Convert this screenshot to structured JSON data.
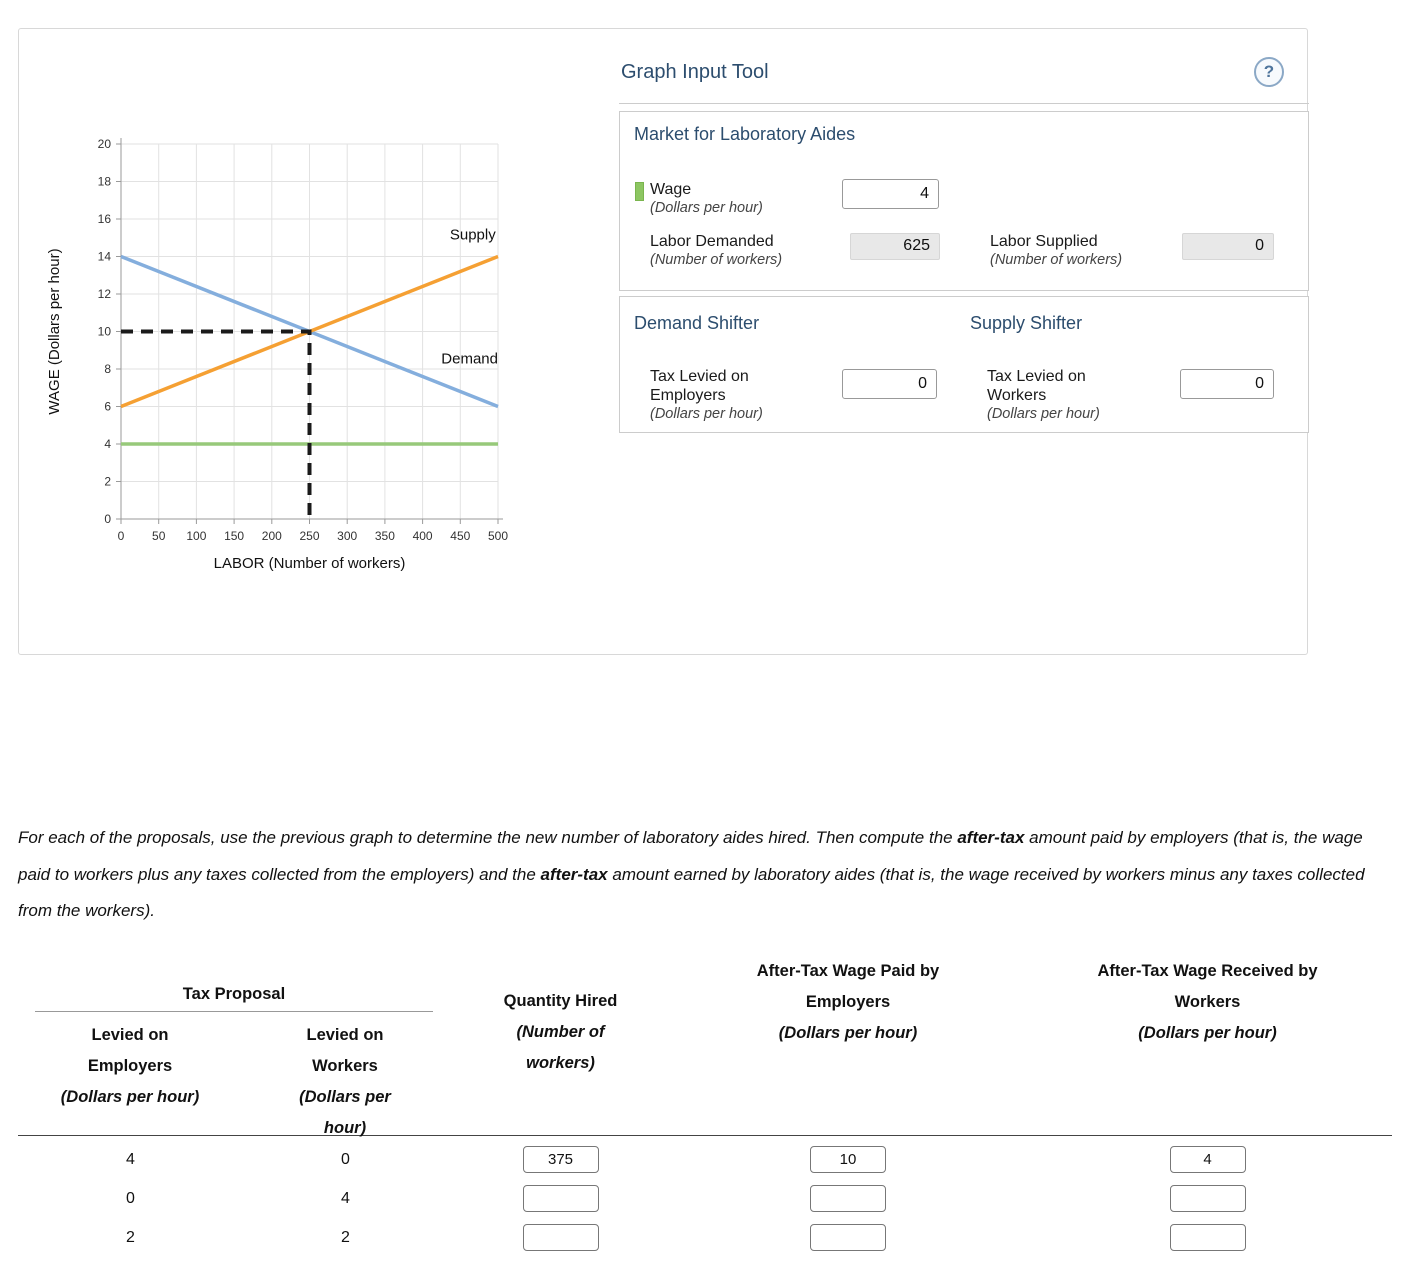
{
  "app": {
    "title": "Graph Input Tool",
    "help_icon": "?"
  },
  "chart_data": {
    "type": "line",
    "title": "",
    "xlabel": "LABOR (Number of workers)",
    "ylabel": "WAGE (Dollars per hour)",
    "xlim": [
      0,
      500
    ],
    "ylim": [
      0,
      20
    ],
    "x_ticks": [
      0,
      50,
      100,
      150,
      200,
      250,
      300,
      350,
      400,
      450,
      500
    ],
    "y_ticks": [
      0,
      2,
      4,
      6,
      8,
      10,
      12,
      14,
      16,
      18,
      20
    ],
    "grid": true,
    "legend_position": "inline-labels",
    "series": [
      {
        "name": "Demand",
        "color": "#84aedd",
        "points": [
          [
            0,
            14
          ],
          [
            500,
            6
          ]
        ],
        "label": "Demand",
        "label_at": [
          500,
          8.3
        ],
        "label_anchor": "end"
      },
      {
        "name": "Supply",
        "color": "#f5a033",
        "points": [
          [
            0,
            6
          ],
          [
            500,
            14
          ]
        ],
        "label": "Supply",
        "label_at": [
          497,
          14.9
        ],
        "label_anchor": "end"
      },
      {
        "name": "Wage",
        "color": "#97c97a",
        "points": [
          [
            0,
            4
          ],
          [
            500,
            4
          ]
        ]
      }
    ],
    "crosshair": {
      "x": 250,
      "y": 10,
      "color": "#1a1a1a"
    }
  },
  "market_panel": {
    "title": "Market for Laboratory Aides",
    "wage": {
      "label": "Wage",
      "sublabel": "(Dollars per hour)",
      "value": "4"
    },
    "labor_demanded": {
      "label": "Labor Demanded",
      "sublabel": "(Number of workers)",
      "value": "625"
    },
    "labor_supplied": {
      "label": "Labor Supplied",
      "sublabel": "(Number of workers)",
      "value": "0"
    }
  },
  "shifter_panel": {
    "demand_title": "Demand Shifter",
    "supply_title": "Supply Shifter",
    "employer_tax": {
      "label_line1": "Tax Levied on",
      "label_line2": "Employers",
      "sublabel": "(Dollars per hour)",
      "value": "0"
    },
    "worker_tax": {
      "label_line1": "Tax Levied on",
      "label_line2": "Workers",
      "sublabel": "(Dollars per hour)",
      "value": "0"
    }
  },
  "instructions": {
    "segments": [
      {
        "text": "For each of the proposals, use the previous graph to determine the new number of laboratory aides hired. Then compute the ",
        "bold": false
      },
      {
        "text": "after-tax",
        "bold": true
      },
      {
        "text": " amount paid by employers (that is, the wage paid to workers plus any taxes collected from the employers) and the ",
        "bold": false
      },
      {
        "text": "after-tax",
        "bold": true
      },
      {
        "text": " amount earned by laboratory aides (that is, the wage received by workers minus any taxes collected from the workers).",
        "bold": false
      }
    ]
  },
  "table": {
    "group_header": "Tax Proposal",
    "headers": {
      "levied_employers": {
        "lines": [
          "Levied on",
          "Employers"
        ],
        "sub_lines": [
          "(Dollars per hour)"
        ]
      },
      "levied_workers": {
        "lines": [
          "Levied on",
          "Workers"
        ],
        "sub_lines": [
          "(Dollars per",
          "hour)"
        ]
      },
      "quantity": {
        "lines": [
          "Quantity Hired"
        ],
        "sub_lines": [
          "(Number of",
          "workers)"
        ]
      },
      "paid": {
        "lines": [
          "After-Tax Wage Paid by",
          "Employers"
        ],
        "sub_lines": [
          "(Dollars per hour)"
        ]
      },
      "received": {
        "lines": [
          "After-Tax Wage Received by",
          "Workers"
        ],
        "sub_lines": [
          "(Dollars per hour)"
        ]
      }
    },
    "rows": [
      {
        "levied_employers": "4",
        "levied_workers": "0",
        "quantity": "375",
        "paid": "10",
        "received": "4"
      },
      {
        "levied_employers": "0",
        "levied_workers": "4",
        "quantity": "",
        "paid": "",
        "received": ""
      },
      {
        "levied_employers": "2",
        "levied_workers": "2",
        "quantity": "",
        "paid": "",
        "received": ""
      }
    ]
  }
}
